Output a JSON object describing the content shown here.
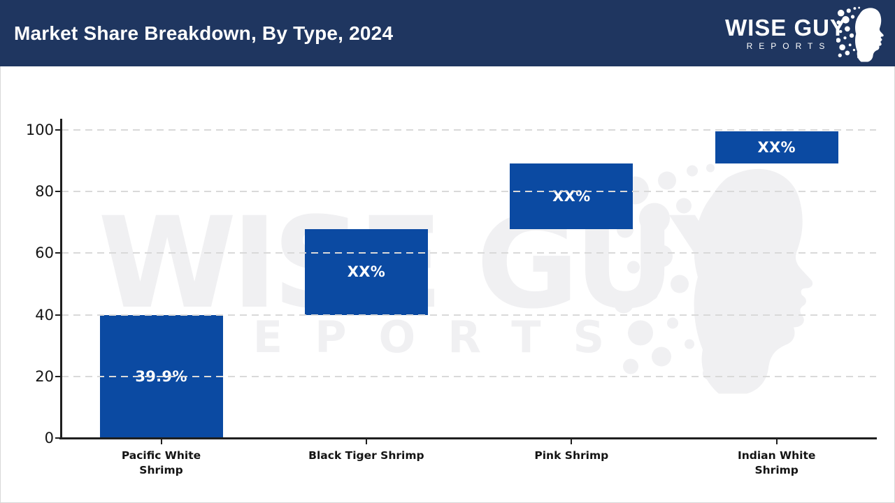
{
  "header": {
    "title": "Market Share Breakdown, By Type, 2024",
    "bg_color": "#1F3660",
    "logo": {
      "wordmark": "WISE GUY",
      "subtext": "REPORTS"
    }
  },
  "watermark": {
    "wordmark": "WISE GUY",
    "subtext": "REPORTS"
  },
  "chart_data": {
    "type": "bar",
    "subtype": "waterfall",
    "title": "Market Share Breakdown, By Type, 2024",
    "categories": [
      "Pacific White Shrimp",
      "Black Tiger Shrimp",
      "Pink Shrimp",
      "Indian White Shrimp"
    ],
    "category_lines": [
      [
        "Pacific White",
        "Shrimp"
      ],
      [
        "Black Tiger Shrimp"
      ],
      [
        "Pink Shrimp"
      ],
      [
        "Indian White",
        "Shrimp"
      ]
    ],
    "series": [
      {
        "name": "Market share (%)",
        "segments": [
          {
            "category": "Pacific White Shrimp",
            "start": 0,
            "end": 39.9,
            "label": "39.9%"
          },
          {
            "category": "Black Tiger Shrimp",
            "start": 39.9,
            "end": 67.9,
            "label": "XX%"
          },
          {
            "category": "Pink Shrimp",
            "start": 67.9,
            "end": 89.1,
            "label": "XX%"
          },
          {
            "category": "Indian White Shrimp",
            "start": 89.1,
            "end": 99.6,
            "label": "XX%"
          }
        ]
      }
    ],
    "xlabel": "",
    "ylabel": "",
    "yticks": [
      0,
      20,
      40,
      60,
      80,
      100
    ],
    "ylim": [
      0,
      103.5
    ],
    "grid": "horizontal dashed, drawn over bars",
    "legend": "none",
    "bar_color": "#0B4AA2",
    "bar_label_color": "#FFFFFF",
    "axis_color": "#1f1f1f",
    "gridline_color": "#d9d9d9"
  }
}
